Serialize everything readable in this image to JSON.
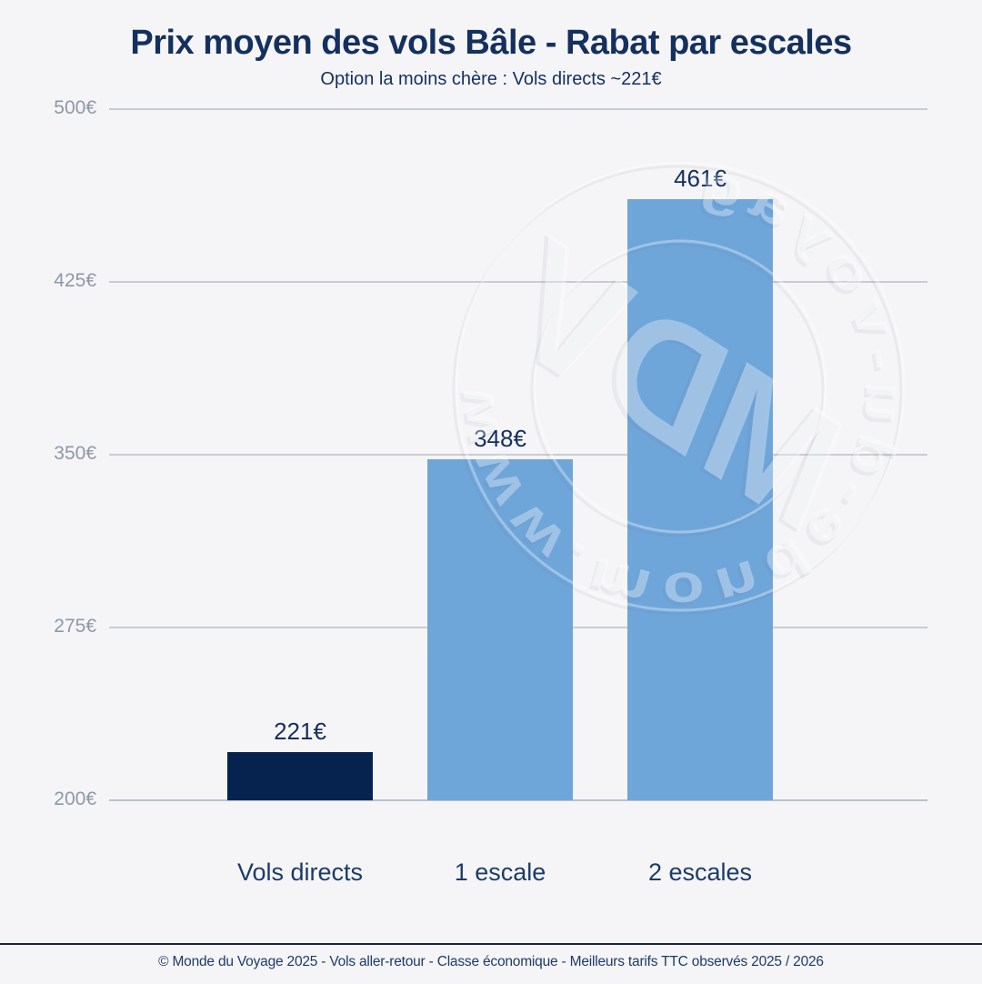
{
  "header": {
    "title": "Prix moyen des vols Bâle - Rabat par escales",
    "subtitle": "Option la moins chère : Vols directs ~221€"
  },
  "watermark": {
    "center_text": "MDV",
    "ring_text": "www.monde-du-voyage.com",
    "separator": " · "
  },
  "footer": {
    "text": "© Monde du Voyage 2025 - Vols aller-retour - Classe économique - Meilleurs tarifs TTC observés 2025 / 2026"
  },
  "colors": {
    "background": "#f5f5f7",
    "bar_primary": "#062350",
    "bar_secondary": "#6fa6da",
    "title_text": "#14305e",
    "category_text": "#1c3b68",
    "value_text": "#14305e",
    "tick_text": "#8f97a9",
    "gridline": "#c9ccd5",
    "footer_line": "#16243d"
  },
  "chart_data": {
    "type": "bar",
    "title": "Prix moyen des vols Bâle - Rabat par escales",
    "subtitle": "Option la moins chère : Vols directs ~221€",
    "categories": [
      "Vols directs",
      "1 escale",
      "2 escales"
    ],
    "values": [
      221,
      348,
      461
    ],
    "value_labels": [
      "221€",
      "348€",
      "461€"
    ],
    "bar_colors": [
      "#062350",
      "#6fa6da",
      "#6fa6da"
    ],
    "cheapest_option": "Vols directs",
    "cheapest_price": 221,
    "currency": "€",
    "y_ticks": [
      200,
      275,
      350,
      425,
      500
    ],
    "y_tick_labels": [
      "200€",
      "275€",
      "350€",
      "425€",
      "500€"
    ],
    "ylim": [
      200,
      500
    ],
    "grid": true,
    "legend_position": "none",
    "xlabel": "",
    "ylabel": ""
  }
}
